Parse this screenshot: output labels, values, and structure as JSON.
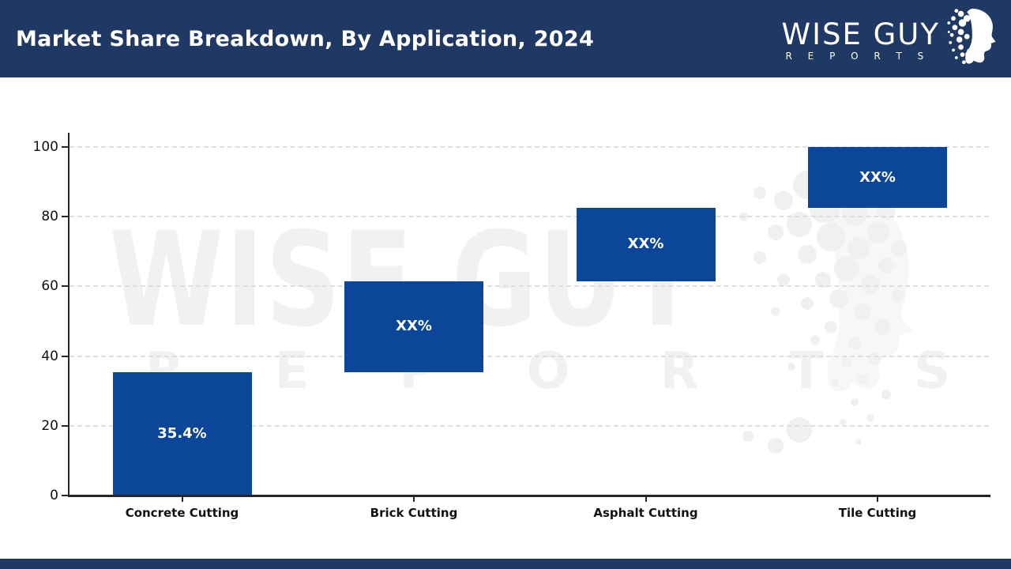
{
  "header": {
    "title": "Market Share Breakdown, By Application, 2024",
    "logo": {
      "line1": "WISE GUY",
      "line2": "R E P O R T S"
    }
  },
  "watermark": {
    "line1": "WISE GUY",
    "line2": "R E P O R T S"
  },
  "colors": {
    "header_bg": "#203864",
    "footer_bg": "#203864",
    "bar": "#0b4699",
    "grid": "#dfdfdf",
    "axis": "#262626",
    "tick_text": "#111111",
    "watermark": "#f1f1f1",
    "title_text": "#ffffff"
  },
  "chart_data": {
    "type": "bar",
    "subtype": "waterfall",
    "title": "Market Share Breakdown, By Application, 2024",
    "categories": [
      "Concrete Cutting",
      "Brick Cutting",
      "Asphalt Cutting",
      "Tile Cutting"
    ],
    "segments": [
      {
        "start": 0,
        "end": 35.4,
        "label": "35.4%"
      },
      {
        "start": 35.4,
        "end": 61.5,
        "label": "XX%"
      },
      {
        "start": 61.5,
        "end": 82.5,
        "label": "XX%"
      },
      {
        "start": 82.5,
        "end": 100,
        "label": "XX%"
      }
    ],
    "values_shown": [
      "35.4%",
      "XX%",
      "XX%",
      "XX%"
    ],
    "yticks": [
      0,
      20,
      40,
      60,
      80,
      100
    ],
    "ylim": [
      0,
      105
    ],
    "xlabel": "",
    "ylabel": "",
    "grid": "horizontal-dashed",
    "legend": "none",
    "bar_color": "#0b4699",
    "label_color": "#ffffff"
  }
}
